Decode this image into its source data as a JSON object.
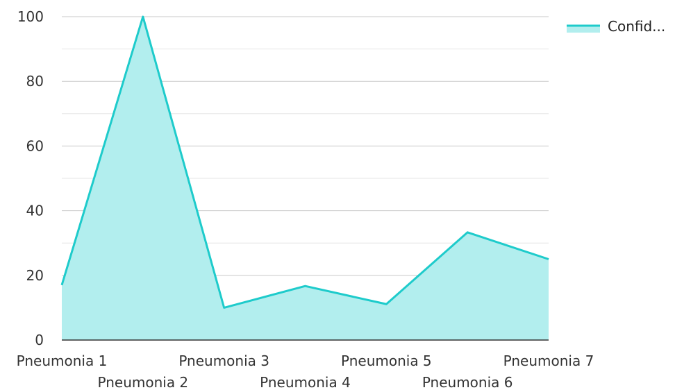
{
  "chart_data": {
    "type": "area",
    "categories": [
      "Pneumonia 1",
      "Pneumonia 2",
      "Pneumonia 3",
      "Pneumonia 4",
      "Pneumonia 5",
      "Pneumonia 6",
      "Pneumonia 7"
    ],
    "series": [
      {
        "name": "Confid...",
        "values": [
          17,
          100,
          10,
          16.7,
          11.1,
          33.3,
          25
        ]
      }
    ],
    "ylim": [
      0,
      100
    ],
    "yticks": [
      0,
      20,
      40,
      60,
      80,
      100
    ],
    "grid": true,
    "legend_position": "top-right",
    "colors": {
      "line": "#1ecbcb",
      "fill": "#b2eeee",
      "grid_major": "#c8c8c8",
      "grid_minor": "#e6e6e6",
      "axis": "#333333"
    }
  }
}
